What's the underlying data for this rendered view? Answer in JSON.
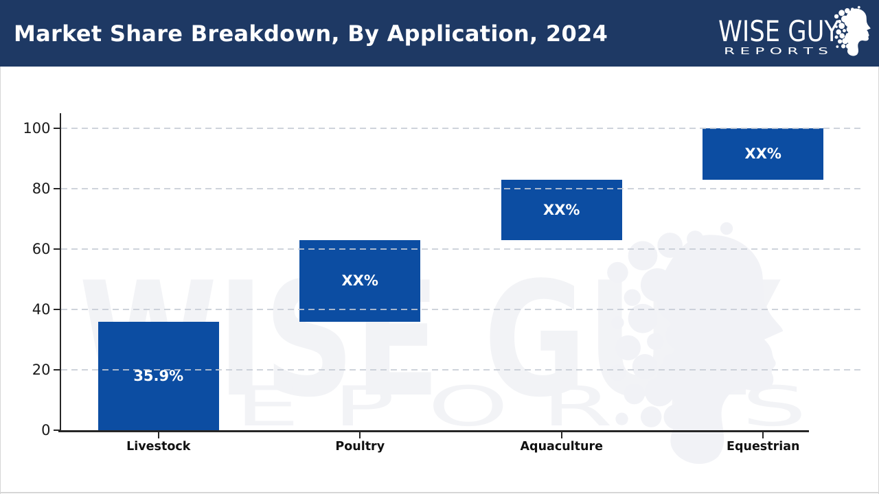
{
  "header": {
    "title": "Market Share Breakdown, By Application, 2024",
    "logo": {
      "line1": "WISE GUY",
      "line2": "R E P O R T S"
    }
  },
  "watermark": {
    "line1": "WISE GUY",
    "line2": "R E P O R T S"
  },
  "colors": {
    "header_bg": "#1e3964",
    "bar": "#0c4da2",
    "bar_label": "#ffffff",
    "grid": "#c5cbd5",
    "axis": "#262626",
    "watermark": "#f2f3f6"
  },
  "chart_data": {
    "type": "bar",
    "subtype": "stacked-waterfall-breakdown",
    "title": "Market Share Breakdown, By Application, 2024",
    "categories": [
      "Livestock",
      "Poultry",
      "Aquaculture",
      "Equestrian"
    ],
    "segments": [
      {
        "category": "Livestock",
        "start": 0,
        "end": 35.9,
        "label": "35.9%"
      },
      {
        "category": "Poultry",
        "start": 35.9,
        "end": 63,
        "label": "XX%"
      },
      {
        "category": "Aquaculture",
        "start": 63,
        "end": 83,
        "label": "XX%"
      },
      {
        "category": "Equestrian",
        "start": 83,
        "end": 100,
        "label": "XX%"
      }
    ],
    "yticks": [
      0,
      20,
      40,
      60,
      80,
      100
    ],
    "ylim": [
      0,
      104
    ],
    "xlabel": "",
    "ylabel": "",
    "grid": "dashed-horizontal",
    "legend": "none"
  }
}
